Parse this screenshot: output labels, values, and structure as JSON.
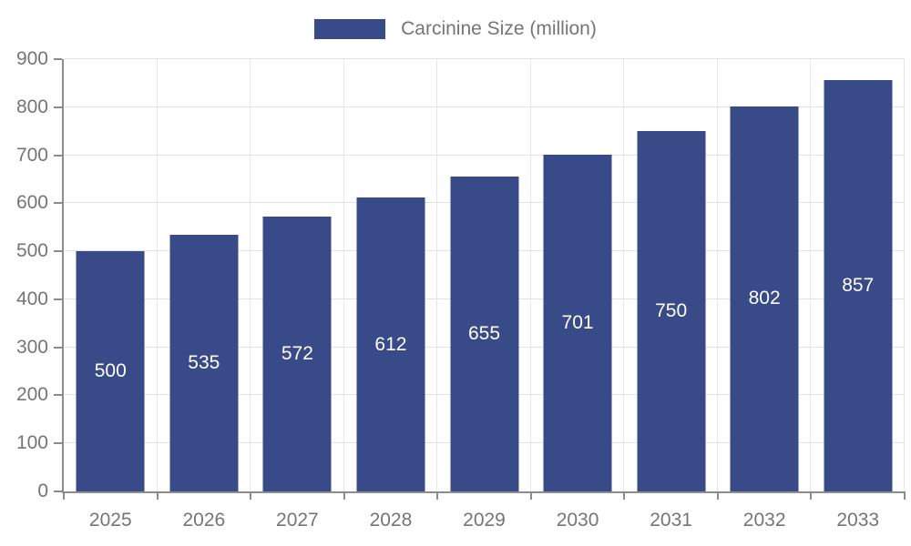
{
  "legend": {
    "label": "Carcinine Size (million)"
  },
  "chart_data": {
    "type": "bar",
    "title": "",
    "xlabel": "",
    "ylabel": "",
    "categories": [
      "2025",
      "2026",
      "2027",
      "2028",
      "2029",
      "2030",
      "2031",
      "2032",
      "2033"
    ],
    "values": [
      500,
      535,
      572,
      612,
      655,
      701,
      750,
      802,
      857
    ],
    "series_name": "Carcinine Size (million)",
    "ylim": [
      0,
      900
    ],
    "ytick_step": 100,
    "grid": true,
    "legend_position": "top",
    "colors": {
      "bar": "#394A88",
      "bar_label": "#FFFFFF",
      "axis_line": "#8C8C8C",
      "axis_text": "#757575",
      "h_gridline": "#E1E1E7",
      "v_gridline": "#E6E6EC",
      "background": "#FFFFFF"
    }
  }
}
